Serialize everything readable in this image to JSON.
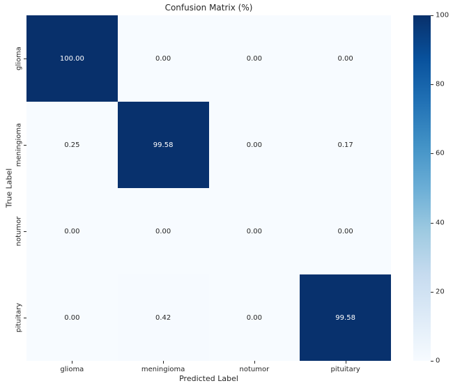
{
  "chart_data": {
    "type": "heatmap",
    "title": "Confusion Matrix (%)",
    "xlabel": "Predicted Label",
    "ylabel": "True Label",
    "x_categories": [
      "glioma",
      "meningioma",
      "notumor",
      "pituitary"
    ],
    "y_categories": [
      "glioma",
      "meningioma",
      "notumor",
      "pituitary"
    ],
    "values": [
      [
        100.0,
        0.0,
        0.0,
        0.0
      ],
      [
        0.25,
        99.58,
        0.0,
        0.17
      ],
      [
        0.0,
        0.0,
        0.0,
        0.0
      ],
      [
        0.0,
        0.42,
        0.0,
        99.58
      ]
    ],
    "cell_labels": [
      [
        "100.00",
        "0.00",
        "0.00",
        "0.00"
      ],
      [
        "0.25",
        "99.58",
        "0.00",
        "0.17"
      ],
      [
        "0.00",
        "0.00",
        "0.00",
        "0.00"
      ],
      [
        "0.00",
        "0.42",
        "0.00",
        "99.58"
      ]
    ],
    "vmin": 0,
    "vmax": 100,
    "colormap": "Blues",
    "colormap_stops": [
      "#f7fbff",
      "#deebf7",
      "#c6dbef",
      "#9ecae1",
      "#6baed6",
      "#4292c6",
      "#2171b5",
      "#08519c",
      "#08306b"
    ],
    "colorbar_ticks": [
      0,
      20,
      40,
      60,
      80,
      100
    ],
    "colorbar_position": "right",
    "annot_color_dark": "#262626",
    "annot_color_light": "#ffffff",
    "background": "#ffffff",
    "grid": false
  }
}
